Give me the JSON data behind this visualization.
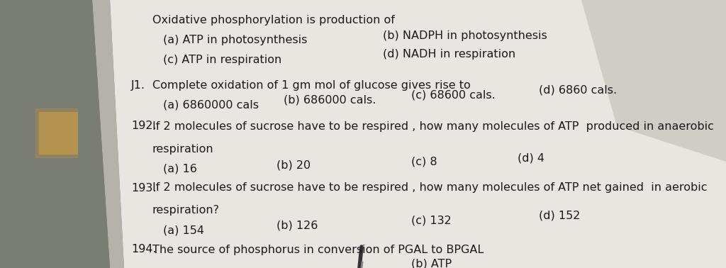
{
  "bg_color": "#6b7060",
  "left_bg": "#5a5e52",
  "page_color": "#e8e6e0",
  "text_color": "#1a1a1a",
  "shadow_color": "#c0bdb5",
  "font_size": 11.5,
  "content": [
    {
      "row": 0,
      "col": 0,
      "text": "Oxidative phosphorylation is production of",
      "indent": 1
    },
    {
      "row": 1,
      "col": 0,
      "text": "(a) ATP in photosynthesis",
      "indent": 2
    },
    {
      "row": 1,
      "col": 1,
      "text": "(b) NADPH in photosynthesis",
      "indent": 0
    },
    {
      "row": 2,
      "col": 0,
      "text": "(c) ATP in respiration",
      "indent": 2
    },
    {
      "row": 2,
      "col": 1,
      "text": "(d) NADH in respiration",
      "indent": 0
    },
    {
      "row": 3,
      "col": 0,
      "text": "J1.",
      "indent": 0,
      "is_num": true
    },
    {
      "row": 3,
      "col": 0,
      "text": "Complete oxidation of 1 gm mol of glucose gives rise to",
      "indent": 1
    },
    {
      "row": 4,
      "col": 0,
      "text": "(a) 6860000 cals",
      "indent": 2
    },
    {
      "row": 4,
      "col": 1,
      "text": "(b) 686000 cals.",
      "indent": 0
    },
    {
      "row": 4,
      "col": 2,
      "text": "(c) 68600 cals.",
      "indent": 0
    },
    {
      "row": 4,
      "col": 3,
      "text": "(d) 6860 cals.",
      "indent": 0
    },
    {
      "row": 5,
      "col": 0,
      "text": "192.",
      "indent": 0,
      "is_num": true
    },
    {
      "row": 5,
      "col": 0,
      "text": "If 2 molecules of sucrose have to be respired , how many molecules of ATP  produced in anaerobic",
      "indent": 1
    },
    {
      "row": 6,
      "col": 0,
      "text": "respiration",
      "indent": 2
    },
    {
      "row": 7,
      "col": 0,
      "text": "(a) 16",
      "indent": 2
    },
    {
      "row": 7,
      "col": 1,
      "text": "(b) 20",
      "indent": 0
    },
    {
      "row": 7,
      "col": 2,
      "text": "(c) 8",
      "indent": 0
    },
    {
      "row": 7,
      "col": 3,
      "text": "(d) 4",
      "indent": 0
    },
    {
      "row": 8,
      "col": 0,
      "text": "193.",
      "indent": 0,
      "is_num": true
    },
    {
      "row": 8,
      "col": 0,
      "text": "If 2 molecules of sucrose have to be respired , how many molecules of ATP net gained  in aerobic",
      "indent": 1
    },
    {
      "row": 9,
      "col": 0,
      "text": "respiration?",
      "indent": 2
    },
    {
      "row": 10,
      "col": 0,
      "text": "(a) 154",
      "indent": 2
    },
    {
      "row": 10,
      "col": 1,
      "text": "(b) 126",
      "indent": 0
    },
    {
      "row": 10,
      "col": 2,
      "text": "(c) 132",
      "indent": 0
    },
    {
      "row": 10,
      "col": 3,
      "text": "(d) 152",
      "indent": 0
    },
    {
      "row": 11,
      "col": 0,
      "text": "194.",
      "indent": 0,
      "is_num": true
    },
    {
      "row": 11,
      "col": 0,
      "text": "The source of phosphorus in conversion of PGAL to BPGAL",
      "indent": 1
    },
    {
      "row": 12,
      "col": 1,
      "text": "(b) ATP",
      "indent": 0
    }
  ]
}
